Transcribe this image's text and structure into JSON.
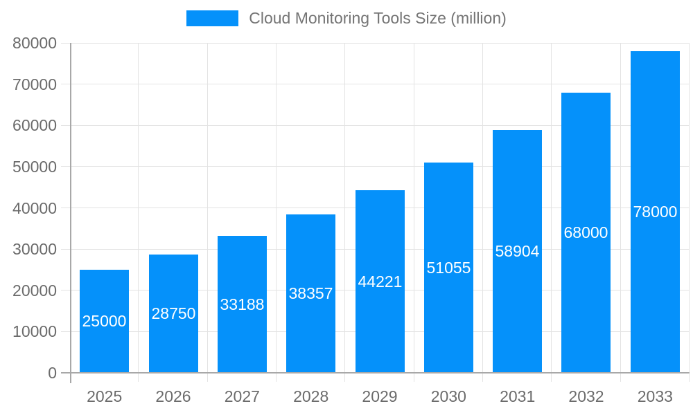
{
  "chart_data": {
    "type": "bar",
    "title": "Cloud Monitoring Tools Size (million)",
    "categories": [
      "2025",
      "2026",
      "2027",
      "2028",
      "2029",
      "2030",
      "2031",
      "2032",
      "2033"
    ],
    "values": [
      25000,
      28750,
      33188,
      38357,
      44221,
      51055,
      58904,
      68000,
      78000
    ],
    "series": [
      {
        "name": "Cloud Monitoring Tools Size (million)",
        "values": [
          25000,
          28750,
          33188,
          38357,
          44221,
          51055,
          58904,
          68000,
          78000
        ]
      }
    ],
    "xlabel": "",
    "ylabel": "",
    "ylim": [
      0,
      80000
    ],
    "yticks": [
      0,
      10000,
      20000,
      30000,
      40000,
      50000,
      60000,
      70000,
      80000
    ],
    "grid": true,
    "legend_position": "top-center",
    "value_labels_position": "inside-center",
    "colors": {
      "bar": "#0591FA",
      "bar_value_label": "#FFFFFF",
      "title_text": "#757575",
      "axis_text": "#6B6B6B",
      "gridline": "#E3E3E3",
      "axis_line": "#A8A8A8",
      "background": "#FFFFFF"
    }
  }
}
